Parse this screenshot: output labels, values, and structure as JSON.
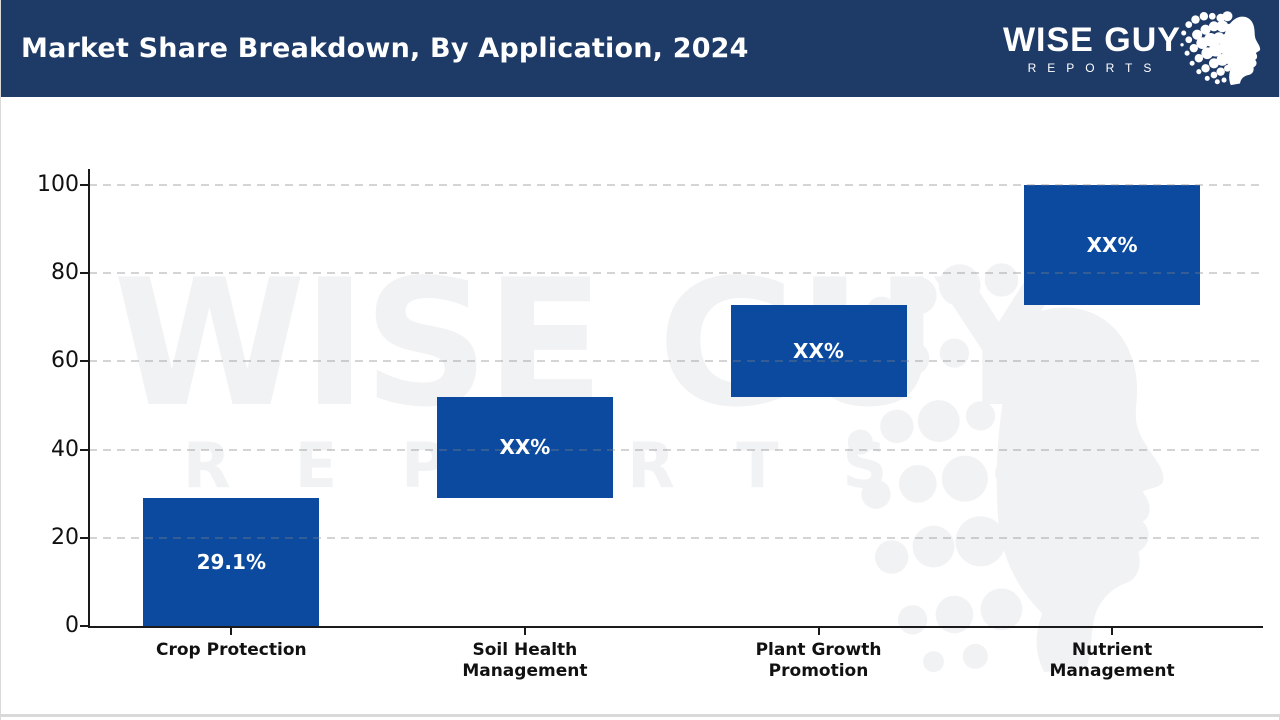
{
  "header": {
    "title": "Market Share Breakdown, By Application, 2024",
    "brand": {
      "line1": "WISE GUY",
      "line2": "REPORTS"
    }
  },
  "watermark": {
    "line1": "WISE GUY",
    "line2": "REPORTS"
  },
  "colors": {
    "header_bg": "#1e3a67",
    "bar": "#0c4a9f",
    "bar_label": "#ffffff",
    "axis": "#1a1a1a",
    "grid": "#d9d9d9",
    "watermark": "#f1f2f4"
  },
  "chart_data": {
    "type": "waterfall",
    "title": "Market Share Breakdown, By Application, 2024",
    "categories": [
      "Crop Protection",
      "Soil Health\nManagement",
      "Plant Growth\nPromotion",
      "Nutrient\nManagement"
    ],
    "segments": [
      {
        "category": "Crop Protection",
        "start": 0,
        "end": 29.1,
        "value": 29.1,
        "label": "29.1%"
      },
      {
        "category": "Soil Health Management",
        "start": 29.1,
        "end": 51.9,
        "value": 22.8,
        "label": "XX%"
      },
      {
        "category": "Plant Growth Promotion",
        "start": 51.9,
        "end": 72.8,
        "value": 20.9,
        "label": "XX%"
      },
      {
        "category": "Nutrient Management",
        "start": 72.8,
        "end": 100,
        "value": 27.2,
        "label": "XX%"
      }
    ],
    "ylim": [
      0,
      100
    ],
    "yticks": [
      0,
      20,
      40,
      60,
      80,
      100
    ],
    "xlabel": "",
    "ylabel": "",
    "grid": "horizontal-dashed-over-bars",
    "legend": null,
    "bar_color": "#0c4a9f"
  }
}
